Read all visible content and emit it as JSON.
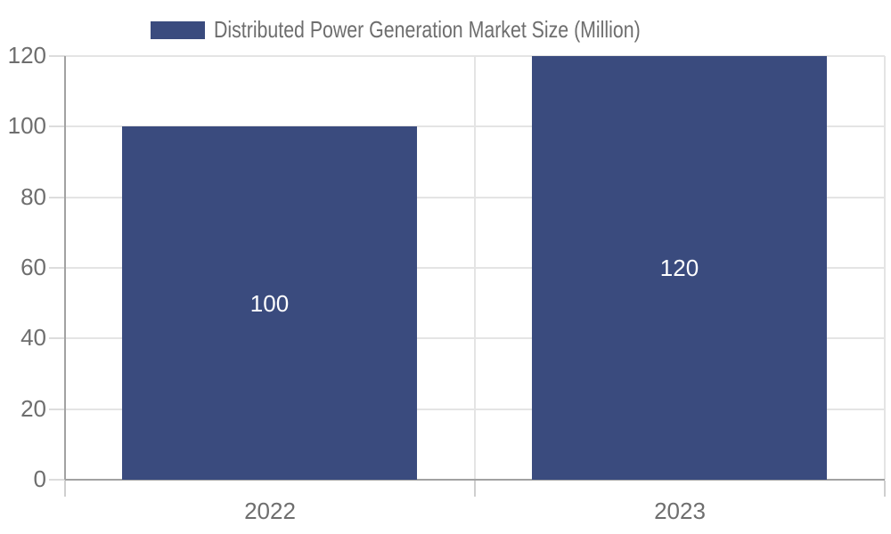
{
  "legend": {
    "label": "Distributed Power Generation Market Size (Million)",
    "swatch_color": "#3A4B7E"
  },
  "chart_data": {
    "type": "bar",
    "categories": [
      "2022",
      "2023"
    ],
    "series": [
      {
        "name": "Distributed Power Generation Market Size (Million)",
        "values": [
          100,
          120
        ]
      }
    ],
    "value_labels": [
      "100",
      "120"
    ],
    "title": "",
    "xlabel": "",
    "ylabel": "",
    "ylim": [
      0,
      120
    ],
    "yticks": [
      0,
      20,
      40,
      60,
      80,
      100,
      120
    ],
    "grid": true,
    "legend_position": "top",
    "bar_color": "#3A4B7E",
    "bar_label_color": "#ffffff",
    "axis_line_color": "#a2a2a2",
    "grid_line_color": "#e4e4e4",
    "text_color": "#6e6e6e"
  }
}
